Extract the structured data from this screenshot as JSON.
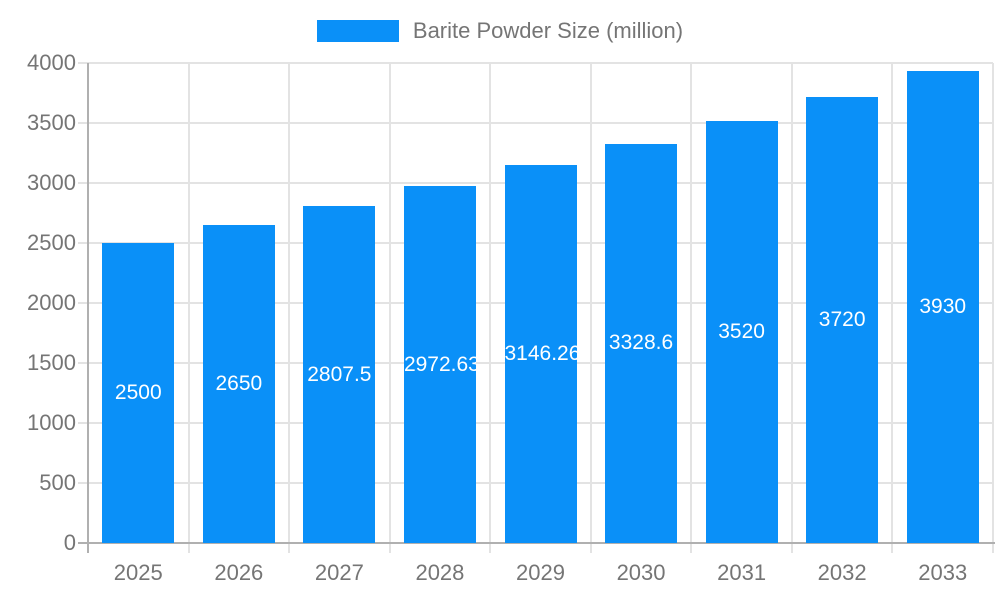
{
  "legend": {
    "label": "Barite Powder Size (million)"
  },
  "chart_data": {
    "type": "bar",
    "title": "Barite Powder Size (million)",
    "categories": [
      "2025",
      "2026",
      "2027",
      "2028",
      "2029",
      "2030",
      "2031",
      "2032",
      "2033"
    ],
    "values": [
      2500,
      2650,
      2807.5,
      2972.63,
      3146.26,
      3328.6,
      3520,
      3720,
      3930
    ],
    "value_labels": [
      "2500",
      "2650",
      "2807.5",
      "2972.63",
      "3146.26",
      "3328.6",
      "3520",
      "3720",
      "3930"
    ],
    "xlabel": "",
    "ylabel": "",
    "ylim": [
      0,
      4000
    ],
    "ytick_step": 500,
    "ytick_labels": [
      "0",
      "500",
      "1000",
      "1500",
      "2000",
      "2500",
      "3000",
      "3500",
      "4000"
    ],
    "grid": true,
    "legend_position": "top",
    "colors": {
      "bar": "#0a90f8",
      "grid": "#e3e3e3",
      "axis": "#b0b0b0",
      "tick_text": "#757575",
      "value_text": "#ffffff",
      "background": "#ffffff"
    }
  }
}
